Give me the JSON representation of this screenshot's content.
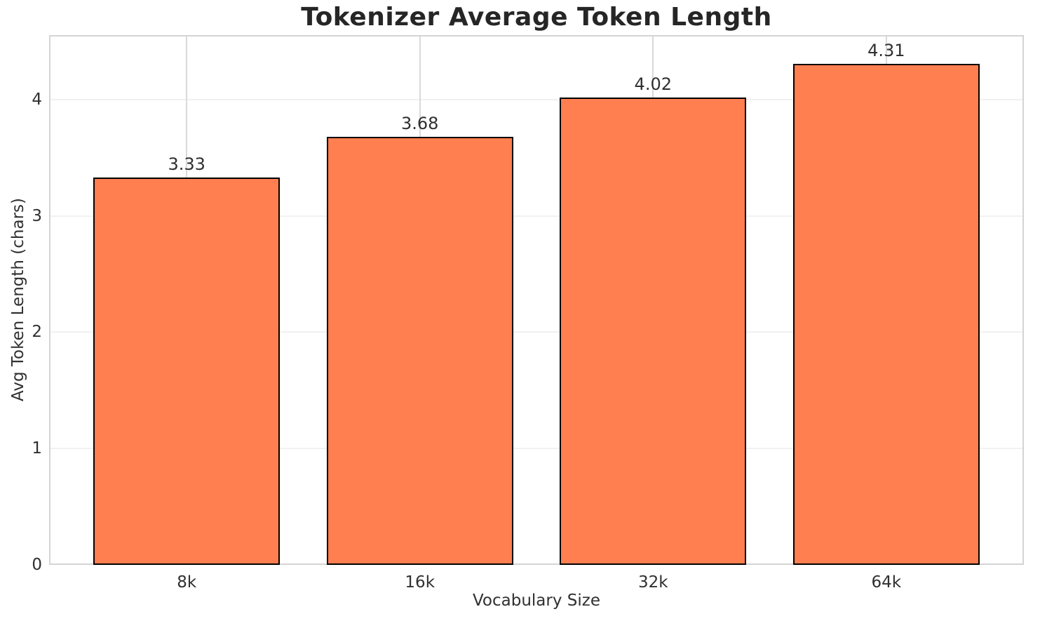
{
  "chart_data": {
    "type": "bar",
    "title": "Tokenizer Average Token Length",
    "xlabel": "Vocabulary Size",
    "ylabel": "Avg Token Length (chars)",
    "categories": [
      "8k",
      "16k",
      "32k",
      "64k"
    ],
    "values": [
      3.33,
      3.68,
      4.02,
      4.31
    ],
    "bar_labels": [
      "3.33",
      "3.68",
      "4.02",
      "4.31"
    ],
    "yticks": [
      "0",
      "1",
      "2",
      "3",
      "4"
    ],
    "ylim": [
      0,
      4.555
    ],
    "xlim_units": [
      -0.59,
      3.59
    ],
    "bar_width_units": 0.8,
    "grid": true,
    "legend": false,
    "colors": {
      "bar_fill": "#FF7F50",
      "bar_edge": "#000000",
      "grid_horizontal": "#f1f1f1",
      "grid_vertical": "#d9d9d9",
      "spine": "#d4d4d4",
      "tick_text": "#303030",
      "title_text": "#262626"
    }
  }
}
